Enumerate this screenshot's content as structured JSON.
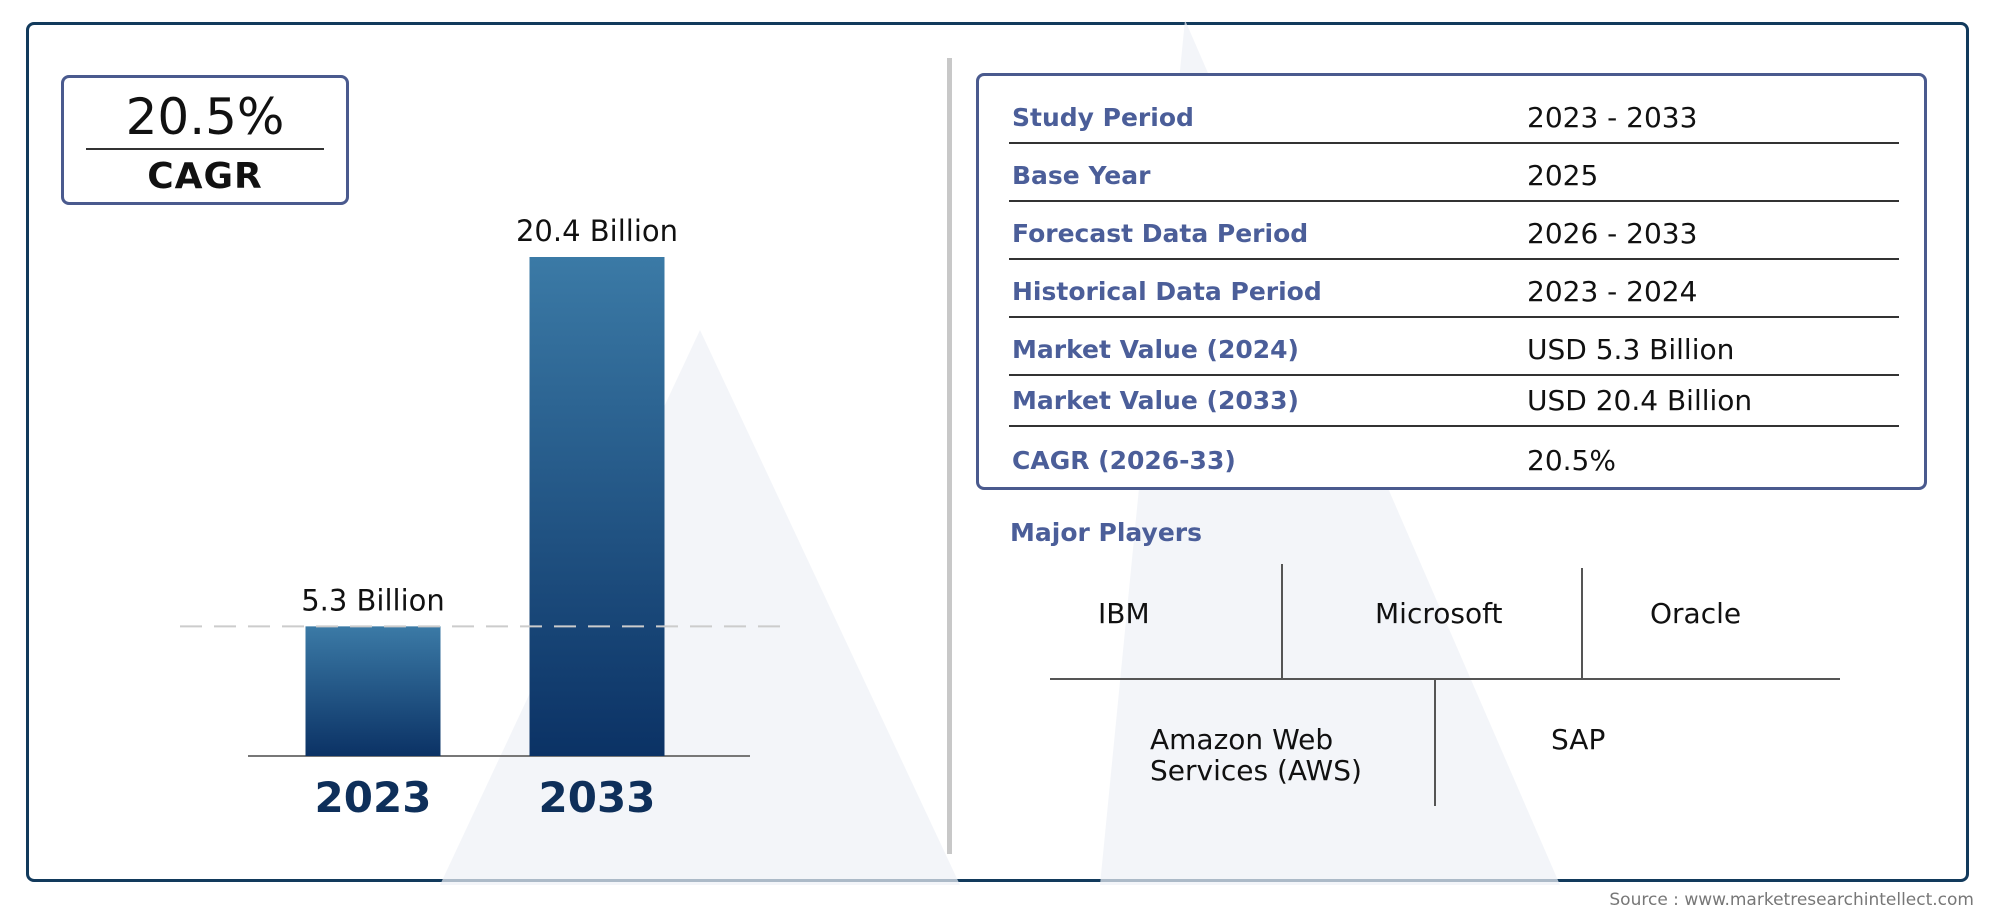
{
  "cagr_box": {
    "value": "20.5%",
    "label": "CAGR"
  },
  "chart_data": {
    "type": "bar",
    "categories": [
      "2023",
      "2033"
    ],
    "values": [
      5.3,
      20.4
    ],
    "value_labels": [
      "5.3 Billion",
      "20.4 Billion"
    ],
    "unit": "Billion",
    "colors": {
      "top": "#3b7aa6",
      "bottom": "#0b3265",
      "year_label": "#0e2f5a"
    },
    "grid": false,
    "legend": "none"
  },
  "table": {
    "rows": [
      {
        "label": "Study Period",
        "value": "2023 - 2033"
      },
      {
        "label": "Base Year",
        "value": "2025"
      },
      {
        "label": "Forecast Data Period",
        "value": "2026 - 2033"
      },
      {
        "label": "Historical Data Period",
        "value": "2023 - 2024"
      },
      {
        "label": "Market Value (2024)",
        "value": "USD 5.3 Billion"
      },
      {
        "label": "Market Value (2033)",
        "value": "USD 20.4 Billion"
      },
      {
        "label": "CAGR (2026-33)",
        "value": "20.5%"
      }
    ]
  },
  "players": {
    "title": "Major Players",
    "names": [
      "IBM",
      "Microsoft",
      "Oracle",
      "Amazon Web Services (AWS)",
      "SAP"
    ]
  },
  "source": "Source : www.marketresearchintellect.com",
  "colors": {
    "frame": "#123a5c",
    "label_blue": "#4b5e99",
    "divider": "#c8c8c8"
  }
}
